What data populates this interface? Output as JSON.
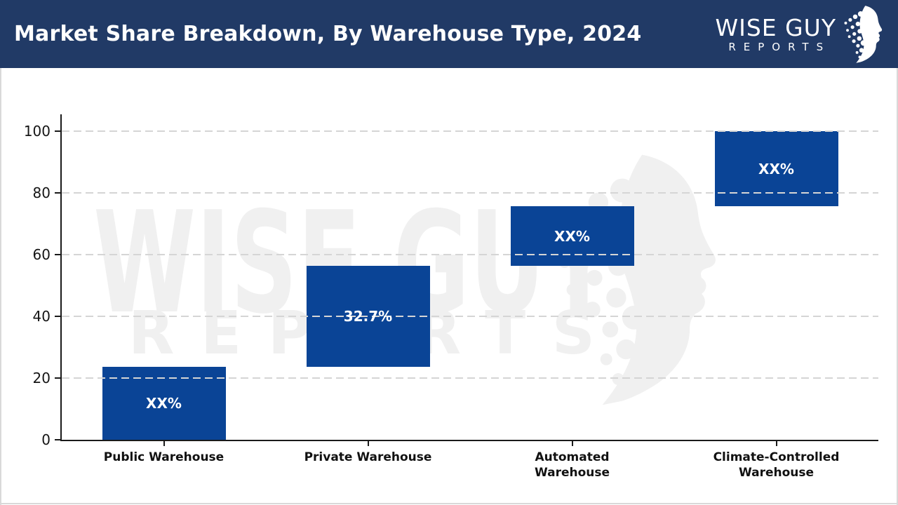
{
  "header": {
    "title": "Market Share Breakdown, By Warehouse Type, 2024",
    "logo": {
      "name": "WISE GUY",
      "subtitle": "REPORTS"
    }
  },
  "watermark": {
    "line1": "WISE GUY",
    "line2": "REPORTS"
  },
  "chart_data": {
    "type": "bar",
    "subtype": "waterfall-floating-bars",
    "title": "Market Share Breakdown, By Warehouse Type, 2024",
    "categories": [
      "Public Warehouse",
      "Private Warehouse",
      "Automated\nWarehouse",
      "Climate-Controlled\nWarehouse"
    ],
    "segments": [
      {
        "category": "Public Warehouse",
        "start": 0,
        "end": 23.7,
        "label": "XX%"
      },
      {
        "category": "Private Warehouse",
        "start": 23.7,
        "end": 56.4,
        "value": 32.7,
        "label": "32.7%"
      },
      {
        "category": "Automated Warehouse",
        "start": 56.4,
        "end": 75.6,
        "label": "XX%"
      },
      {
        "category": "Climate-Controlled Warehouse",
        "start": 75.6,
        "end": 100,
        "label": "XX%"
      }
    ],
    "ylim": [
      0,
      100
    ],
    "yticks": [
      0,
      20,
      40,
      60,
      80,
      100
    ],
    "xlabel": "",
    "ylabel": "",
    "grid": "horizontal-dashed",
    "legend": "none",
    "masked_value_text": "XX%"
  },
  "colors": {
    "header_bg": "#213a66",
    "bar": "#0a4496",
    "axis": "#1a1a1a",
    "grid": "#d5d5d5",
    "watermark_text": "#f0f0f0",
    "watermark_face": "#f0f0f0",
    "background": "#ffffff"
  }
}
